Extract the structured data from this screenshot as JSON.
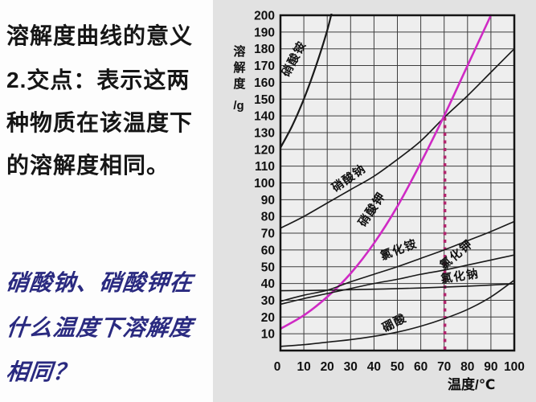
{
  "left_panel": {
    "heading": "溶解度曲线的意义",
    "body_lines": [
      "2.交点：表示这两",
      "种物质在该温度下",
      "的溶解度相同。"
    ],
    "question_lines": [
      "硝酸钠、硝酸钾在",
      "什么温度下溶解度",
      "相同？"
    ],
    "text_color": "#161616",
    "question_color": "#2a2a80"
  },
  "chart_data": {
    "type": "line",
    "title": "",
    "xlabel": "温度/℃",
    "ylabel_main": "溶解度",
    "ylabel_unit": "/g",
    "xlim": [
      0,
      100
    ],
    "ylim": [
      0,
      200
    ],
    "x_ticks": [
      0,
      10,
      20,
      30,
      40,
      50,
      60,
      70,
      80,
      90,
      100
    ],
    "y_ticks": [
      10,
      20,
      30,
      40,
      50,
      60,
      70,
      80,
      90,
      100,
      110,
      120,
      130,
      140,
      150,
      160,
      170,
      180,
      190,
      200
    ],
    "grid": true,
    "legend_position": "labels-on-curves",
    "plot_background": "#eeeeee",
    "panel_background": "#e2e2e2",
    "grid_color": "#3d3d3d",
    "border_color": "#141414",
    "series": [
      {
        "key": "nh4no3",
        "name": "硝酸铵",
        "color": "#1a1a1a",
        "width": 2.2,
        "points": [
          [
            0,
            121
          ],
          [
            5,
            134
          ],
          [
            10,
            150
          ],
          [
            15,
            169
          ],
          [
            20,
            191
          ],
          [
            23,
            208
          ]
        ],
        "label": {
          "x": 7.2,
          "y": 173,
          "angle": -62
        }
      },
      {
        "key": "nano3",
        "name": "硝酸钠",
        "color": "#1a1a1a",
        "width": 1.7,
        "points": [
          [
            0,
            73
          ],
          [
            10,
            80
          ],
          [
            20,
            88
          ],
          [
            30,
            96
          ],
          [
            40,
            104
          ],
          [
            50,
            114
          ],
          [
            60,
            125
          ],
          [
            70,
            139
          ],
          [
            80,
            152
          ],
          [
            90,
            166
          ],
          [
            100,
            180
          ]
        ],
        "label": {
          "x": 30.2,
          "y": 101,
          "angle": -35
        }
      },
      {
        "key": "kno3",
        "name": "硝酸钾",
        "color": "#cf2ac4",
        "width": 2.6,
        "points": [
          [
            0,
            13
          ],
          [
            10,
            21
          ],
          [
            20,
            32
          ],
          [
            30,
            46
          ],
          [
            40,
            64
          ],
          [
            50,
            86
          ],
          [
            60,
            112
          ],
          [
            70,
            140
          ],
          [
            80,
            170
          ],
          [
            90,
            200
          ]
        ],
        "label": {
          "x": 40.5,
          "y": 83,
          "angle": -56
        }
      },
      {
        "key": "nh4cl",
        "name": "氯化铵",
        "color": "#1a1a1a",
        "width": 1.6,
        "points": [
          [
            0,
            29.4
          ],
          [
            10,
            33
          ],
          [
            20,
            36
          ],
          [
            30,
            41
          ],
          [
            40,
            45.5
          ],
          [
            50,
            50
          ],
          [
            60,
            55
          ],
          [
            70,
            60
          ],
          [
            80,
            65.5
          ],
          [
            90,
            71
          ],
          [
            100,
            77
          ]
        ],
        "label": {
          "x": 51.2,
          "y": 58,
          "angle": -21
        }
      },
      {
        "key": "kcl",
        "name": "氯化钾",
        "color": "#1a1a1a",
        "width": 1.6,
        "points": [
          [
            0,
            27.6
          ],
          [
            10,
            31
          ],
          [
            20,
            34
          ],
          [
            30,
            37
          ],
          [
            40,
            40
          ],
          [
            50,
            42.5
          ],
          [
            60,
            45.5
          ],
          [
            70,
            48
          ],
          [
            80,
            51
          ],
          [
            90,
            54
          ],
          [
            100,
            57
          ]
        ],
        "label": {
          "x": 76.3,
          "y": 55.5,
          "angle": -40
        }
      },
      {
        "key": "nacl",
        "name": "氯化钠",
        "color": "#1a1a1a",
        "width": 1.6,
        "points": [
          [
            0,
            35.7
          ],
          [
            20,
            36
          ],
          [
            40,
            36.6
          ],
          [
            60,
            37.3
          ],
          [
            80,
            38.4
          ],
          [
            100,
            39.8
          ]
        ],
        "label": {
          "x": 77,
          "y": 42,
          "angle": -9
        }
      },
      {
        "key": "h3bo3",
        "name": "硼酸",
        "color": "#1a1a1a",
        "width": 1.6,
        "points": [
          [
            0,
            2.5
          ],
          [
            10,
            3.5
          ],
          [
            20,
            5
          ],
          [
            30,
            6.5
          ],
          [
            40,
            8.5
          ],
          [
            50,
            11
          ],
          [
            60,
            14.5
          ],
          [
            70,
            19
          ],
          [
            80,
            24.5
          ],
          [
            90,
            32
          ],
          [
            100,
            42
          ]
        ],
        "label": {
          "x": 49.5,
          "y": 14.5,
          "angle": -27
        }
      }
    ],
    "annotation": {
      "type": "vertical-dotted-guide",
      "x": 70.3,
      "y_top": 140,
      "color": "#b1256d",
      "meaning": "intersection temperature of NaNO3 and KNO3 curves"
    }
  }
}
